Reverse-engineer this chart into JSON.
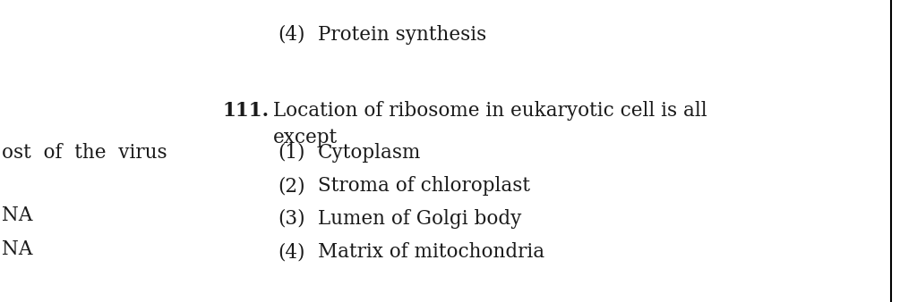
{
  "background_color": "#ffffff",
  "line_color": "#000000",
  "text_color": "#1a1a1a",
  "top_item_num": "(4)",
  "top_item_text": "Protein synthesis",
  "question_number": "111.",
  "question_text_line1": "Location of ribosome in eukaryotic cell is all",
  "question_text_line2": "except",
  "left_line1": "ost  of  the  virus",
  "left_line2": "NA",
  "left_line3": "NA",
  "options": [
    [
      "(1)",
      "Cytoplasm"
    ],
    [
      "(2)",
      "Stroma of chloroplast"
    ],
    [
      "(3)",
      "Lumen of Golgi body"
    ],
    [
      "(4)",
      "Matrix of mitochondria"
    ]
  ],
  "figsize": [
    10.24,
    3.38
  ],
  "dpi": 100
}
